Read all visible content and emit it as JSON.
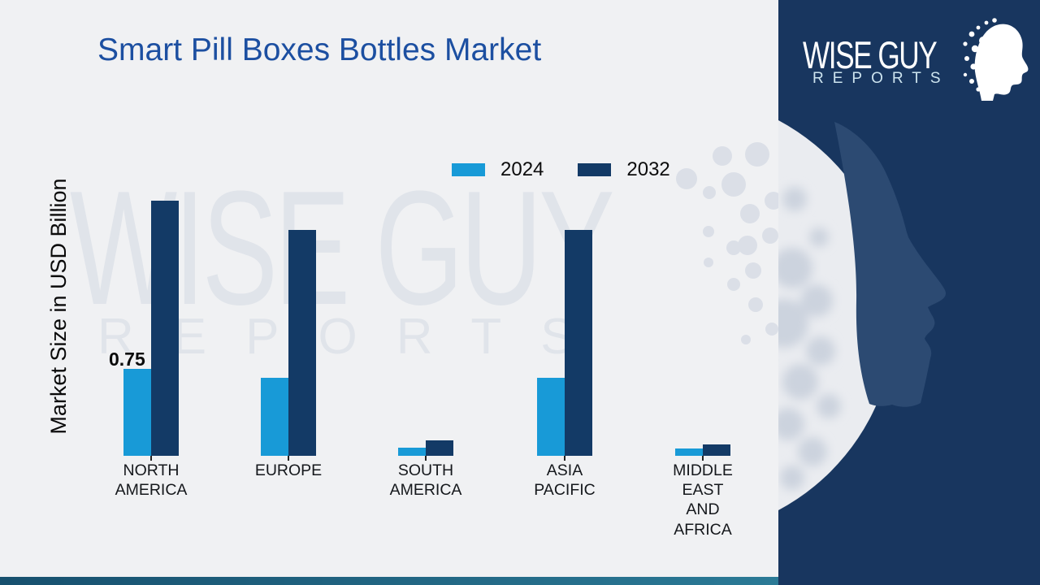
{
  "title": "Smart Pill Boxes Bottles Market",
  "y_axis_label": "Market Size in USD Billion",
  "legend": {
    "items": [
      {
        "label": "2024",
        "color": "#189ad7"
      },
      {
        "label": "2032",
        "color": "#133a66"
      }
    ]
  },
  "regions_display": [
    "NORTH\nAMERICA",
    "EUROPE",
    "SOUTH\nAMERICA",
    "ASIA\nPACIFIC",
    "MIDDLE\nEAST\nAND\nAFRICA"
  ],
  "value_labels": {
    "north_america_2024": "0.75"
  },
  "watermark": {
    "line1": "WISE GUY",
    "line2": "REPORTS"
  },
  "logo": {
    "line1": "WISE GUY",
    "line2": "REPORTS"
  },
  "colors": {
    "title": "#1c4fa1",
    "bar_2024": "#189ad7",
    "bar_2032": "#133a66",
    "panel_navy": "#18365f",
    "footer_teal_start": "#17506e",
    "footer_teal_end": "#2b7a96",
    "watermark_gray": "#e0e4ea"
  },
  "chart_data": {
    "type": "bar",
    "categories": [
      "NORTH AMERICA",
      "EUROPE",
      "SOUTH AMERICA",
      "ASIA PACIFIC",
      "MIDDLE EAST AND AFRICA"
    ],
    "series": [
      {
        "name": "2024",
        "color": "#189ad7",
        "values": [
          0.75,
          0.67,
          0.07,
          0.67,
          0.06
        ]
      },
      {
        "name": "2032",
        "color": "#133a66",
        "values": [
          2.2,
          1.95,
          0.13,
          1.95,
          0.1
        ]
      }
    ],
    "title": "Smart Pill Boxes Bottles Market",
    "xlabel": "",
    "ylabel": "Market Size in USD Billion",
    "ylim": [
      0,
      2.4
    ],
    "grid": false,
    "legend_position": "top",
    "data_labels": [
      {
        "series": "2024",
        "category": "NORTH AMERICA",
        "text": "0.75"
      }
    ]
  }
}
